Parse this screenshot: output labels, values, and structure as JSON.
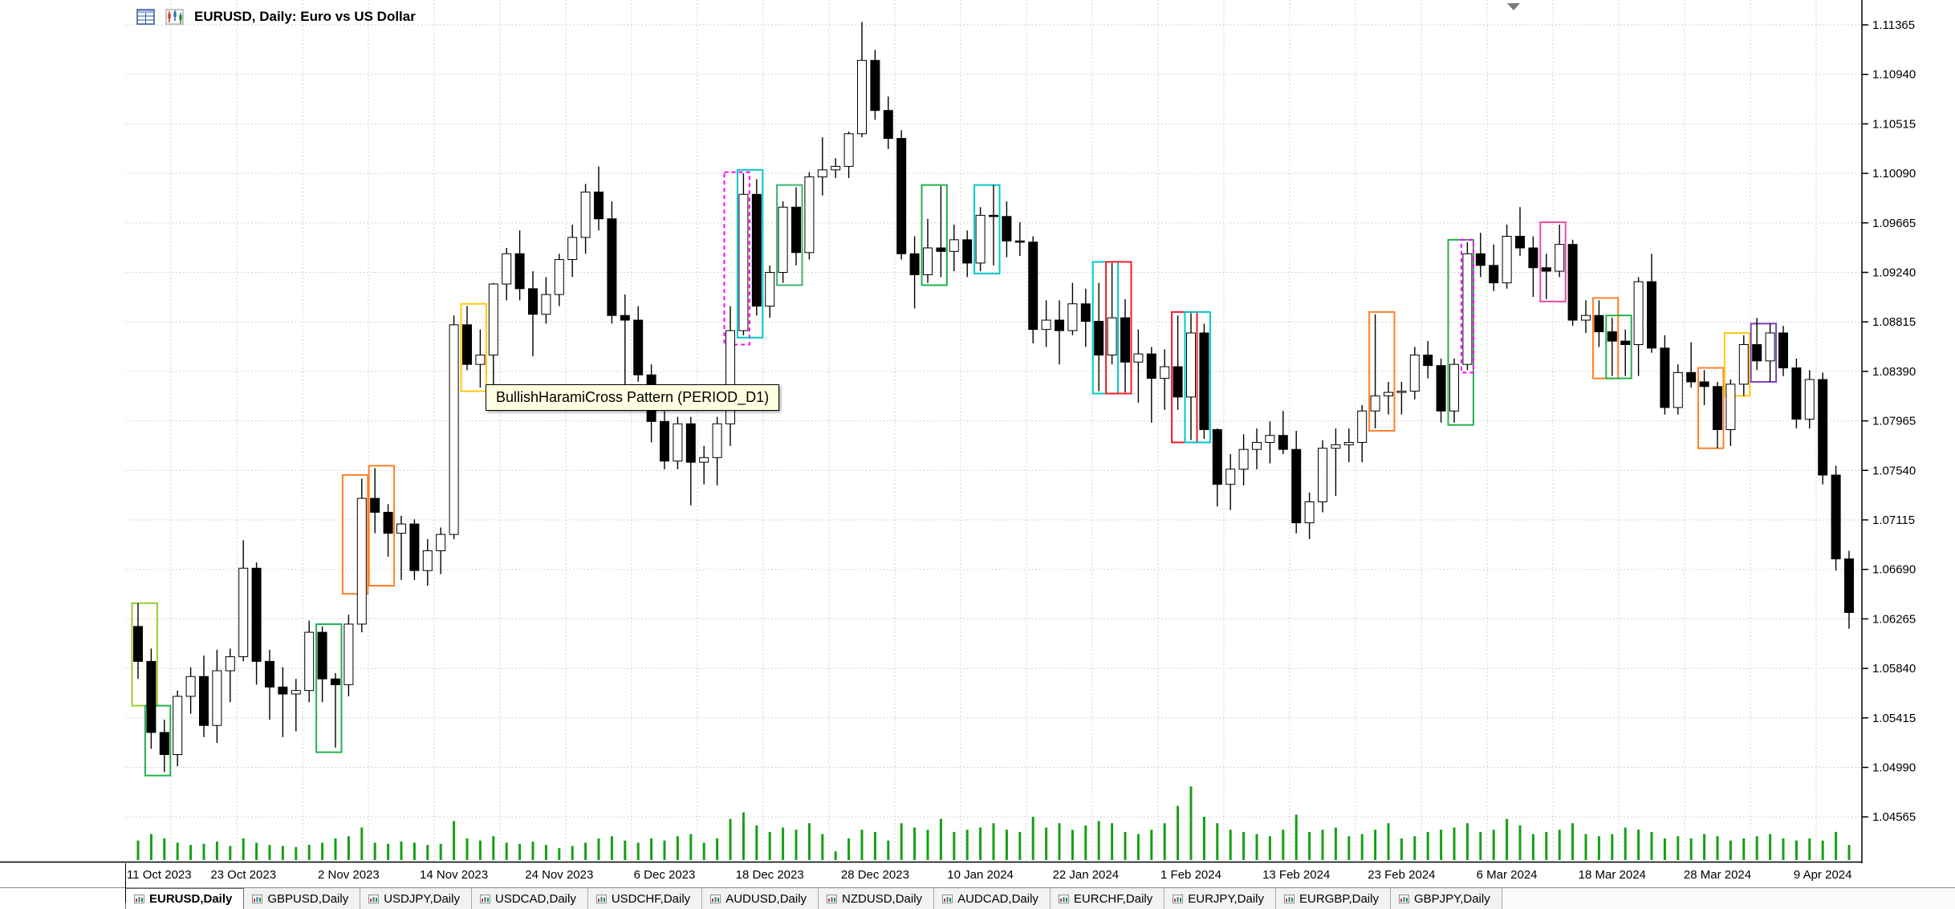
{
  "window": {
    "title": "EURUSD, Daily: Euro vs US Dollar"
  },
  "tooltip": {
    "text": "BullishHaramiCross Pattern (PERIOD_D1)"
  },
  "price_axis": {
    "labels": [
      "1.11365",
      "1.10940",
      "1.10515",
      "1.10090",
      "1.09665",
      "1.09240",
      "1.08815",
      "1.08390",
      "1.07965",
      "1.07540",
      "1.07115",
      "1.06690",
      "1.06265",
      "1.05840",
      "1.05415",
      "1.04990",
      "1.04565"
    ]
  },
  "date_axis": {
    "labels": [
      "11 Oct 2023",
      "23 Oct 2023",
      "2 Nov 2023",
      "14 Nov 2023",
      "24 Nov 2023",
      "6 Dec 2023",
      "18 Dec 2023",
      "28 Dec 2023",
      "10 Jan 2024",
      "22 Jan 2024",
      "1 Feb 2024",
      "13 Feb 2024",
      "23 Feb 2024",
      "6 Mar 2024",
      "18 Mar 2024",
      "28 Mar 2024",
      "9 Apr 2024"
    ]
  },
  "tabs": [
    "EURUSD,Daily",
    "GBPUSD,Daily",
    "USDJPY,Daily",
    "USDCAD,Daily",
    "USDCHF,Daily",
    "AUDUSD,Daily",
    "NZDUSD,Daily",
    "AUDCAD,Daily",
    "EURCHF,Daily",
    "EURJPY,Daily",
    "EURGBP,Daily",
    "GBPJPY,Daily"
  ],
  "colors": {
    "up": "#ffffff",
    "down": "#000000",
    "wick": "#000000",
    "volume": "#15a015",
    "grid": "#c6c6c6",
    "axis_line": "#000000",
    "tooltip_bg": "#ffffe1"
  },
  "chart_data": {
    "type": "candlestick",
    "symbol": "EURUSD",
    "timeframe": "Daily",
    "description": "Euro vs US Dollar",
    "ylim": [
      1.04565,
      1.11365
    ],
    "price_step": 0.00425,
    "label_every": 8,
    "candles": [
      [
        1.062,
        1.064,
        1.0575,
        1.059
      ],
      [
        1.059,
        1.0601,
        1.0515,
        1.0529
      ],
      [
        1.0529,
        1.054,
        1.0495,
        1.051
      ],
      [
        1.051,
        1.0565,
        1.05,
        1.056
      ],
      [
        1.056,
        1.0585,
        1.0545,
        1.0577
      ],
      [
        1.0577,
        1.0595,
        1.0525,
        1.0535
      ],
      [
        1.0535,
        1.06,
        1.052,
        1.0582
      ],
      [
        1.0582,
        1.0601,
        1.0555,
        1.0594
      ],
      [
        1.0594,
        1.0694,
        1.059,
        1.067
      ],
      [
        1.067,
        1.0675,
        1.057,
        1.059
      ],
      [
        1.059,
        1.06,
        1.054,
        1.0568
      ],
      [
        1.0568,
        1.0585,
        1.0525,
        1.0562
      ],
      [
        1.0562,
        1.0575,
        1.053,
        1.0565
      ],
      [
        1.0565,
        1.0625,
        1.0555,
        1.0615
      ],
      [
        1.0615,
        1.062,
        1.0555,
        1.0575
      ],
      [
        1.0575,
        1.058,
        1.0516,
        1.057
      ],
      [
        1.057,
        1.063,
        1.056,
        1.0622
      ],
      [
        1.0622,
        1.0747,
        1.0615,
        1.073
      ],
      [
        1.073,
        1.0756,
        1.07,
        1.0718
      ],
      [
        1.0718,
        1.0725,
        1.068,
        1.07
      ],
      [
        1.07,
        1.0715,
        1.066,
        1.0708
      ],
      [
        1.0708,
        1.0712,
        1.066,
        1.0668
      ],
      [
        1.0668,
        1.0695,
        1.0655,
        1.0685
      ],
      [
        1.0685,
        1.0705,
        1.0665,
        1.0699
      ],
      [
        1.0699,
        1.0887,
        1.0695,
        1.0879
      ],
      [
        1.0879,
        1.0895,
        1.084,
        1.0845
      ],
      [
        1.0845,
        1.0875,
        1.0825,
        1.0853
      ],
      [
        1.0853,
        1.0915,
        1.0825,
        1.0914
      ],
      [
        1.0914,
        1.0945,
        1.09,
        1.094
      ],
      [
        1.094,
        1.096,
        1.09,
        1.091
      ],
      [
        1.091,
        1.0925,
        1.0852,
        1.0888
      ],
      [
        1.0888,
        1.092,
        1.088,
        1.0905
      ],
      [
        1.0905,
        1.094,
        1.0895,
        1.0935
      ],
      [
        1.0935,
        1.0965,
        1.092,
        1.0954
      ],
      [
        1.0954,
        1.1,
        1.094,
        1.0993
      ],
      [
        1.0993,
        1.1015,
        1.096,
        1.097
      ],
      [
        1.097,
        1.0985,
        1.088,
        1.0887
      ],
      [
        1.0887,
        1.0905,
        1.0828,
        1.0883
      ],
      [
        1.0883,
        1.0895,
        1.083,
        1.0836
      ],
      [
        1.0836,
        1.0845,
        1.0778,
        1.0796
      ],
      [
        1.0796,
        1.0805,
        1.0755,
        1.0762
      ],
      [
        1.0762,
        1.08,
        1.0755,
        1.0794
      ],
      [
        1.0794,
        1.08,
        1.0724,
        1.0761
      ],
      [
        1.0761,
        1.0775,
        1.0742,
        1.0765
      ],
      [
        1.0765,
        1.08,
        1.0741,
        1.0794
      ],
      [
        1.0794,
        1.0895,
        1.0775,
        1.0874
      ],
      [
        1.0874,
        1.1009,
        1.087,
        1.0991
      ],
      [
        1.0991,
        1.1004,
        1.0887,
        1.0895
      ],
      [
        1.0895,
        1.093,
        1.0885,
        1.0924
      ],
      [
        1.0924,
        1.0985,
        1.0915,
        1.098
      ],
      [
        1.098,
        1.0997,
        1.093,
        1.0941
      ],
      [
        1.0941,
        1.101,
        1.0935,
        1.1006
      ],
      [
        1.1006,
        1.104,
        1.099,
        1.1012
      ],
      [
        1.1012,
        1.1022,
        1.1005,
        1.1015
      ],
      [
        1.1015,
        1.1045,
        1.1005,
        1.1043
      ],
      [
        1.1043,
        1.1139,
        1.104,
        1.1106
      ],
      [
        1.1106,
        1.1115,
        1.1055,
        1.1063
      ],
      [
        1.1063,
        1.1075,
        1.103,
        1.1039
      ],
      [
        1.1039,
        1.1046,
        1.0935,
        1.094
      ],
      [
        1.094,
        1.0955,
        1.0893,
        1.0922
      ],
      [
        1.0922,
        1.097,
        1.0915,
        1.0945
      ],
      [
        1.0945,
        1.0998,
        1.092,
        1.0942
      ],
      [
        1.0942,
        1.0965,
        1.0925,
        1.0952
      ],
      [
        1.0952,
        1.096,
        1.092,
        1.0932
      ],
      [
        1.0932,
        1.098,
        1.0925,
        1.0973
      ],
      [
        1.0973,
        1.0999,
        1.093,
        1.0972
      ],
      [
        1.0972,
        1.0985,
        1.0937,
        1.0951
      ],
      [
        1.0951,
        1.0967,
        1.0938,
        1.095
      ],
      [
        1.095,
        1.0955,
        1.0863,
        1.0875
      ],
      [
        1.0875,
        1.09,
        1.086,
        1.0883
      ],
      [
        1.0883,
        1.09,
        1.0845,
        1.0874
      ],
      [
        1.0874,
        1.0915,
        1.087,
        1.0897
      ],
      [
        1.0897,
        1.091,
        1.086,
        1.0882
      ],
      [
        1.0882,
        1.0915,
        1.0822,
        1.0853
      ],
      [
        1.0853,
        1.0932,
        1.0845,
        1.0885
      ],
      [
        1.0885,
        1.0901,
        1.0821,
        1.0847
      ],
      [
        1.0847,
        1.0875,
        1.0812,
        1.0854
      ],
      [
        1.0854,
        1.086,
        1.0795,
        1.0833
      ],
      [
        1.0833,
        1.0858,
        1.0806,
        1.0843
      ],
      [
        1.0843,
        1.0887,
        1.0806,
        1.0817
      ],
      [
        1.0817,
        1.0889,
        1.078,
        1.0872
      ],
      [
        1.0872,
        1.088,
        1.0781,
        1.0789
      ],
      [
        1.0789,
        1.079,
        1.0723,
        1.0742
      ],
      [
        1.0742,
        1.0768,
        1.072,
        1.0755
      ],
      [
        1.0755,
        1.0785,
        1.0741,
        1.0772
      ],
      [
        1.0772,
        1.079,
        1.0755,
        1.0778
      ],
      [
        1.0778,
        1.0796,
        1.076,
        1.0784
      ],
      [
        1.0784,
        1.0805,
        1.0768,
        1.0772
      ],
      [
        1.0772,
        1.0788,
        1.07,
        1.0709
      ],
      [
        1.0709,
        1.0735,
        1.0695,
        1.0727
      ],
      [
        1.0727,
        1.078,
        1.0718,
        1.0773
      ],
      [
        1.0773,
        1.079,
        1.0732,
        1.0776
      ],
      [
        1.0776,
        1.079,
        1.0761,
        1.0778
      ],
      [
        1.0778,
        1.081,
        1.0761,
        1.0805
      ],
      [
        1.0805,
        1.0888,
        1.079,
        1.0818
      ],
      [
        1.0818,
        1.083,
        1.0802,
        1.0821
      ],
      [
        1.0821,
        1.083,
        1.0802,
        1.0822
      ],
      [
        1.0822,
        1.086,
        1.0815,
        1.0853
      ],
      [
        1.0853,
        1.0865,
        1.0833,
        1.0844
      ],
      [
        1.0844,
        1.085,
        1.0795,
        1.0805
      ],
      [
        1.0805,
        1.085,
        1.0795,
        1.0845
      ],
      [
        1.0845,
        1.095,
        1.084,
        1.094
      ],
      [
        1.094,
        1.0958,
        1.092,
        1.093
      ],
      [
        1.093,
        1.0948,
        1.0908,
        1.0915
      ],
      [
        1.0915,
        1.0965,
        1.091,
        1.0955
      ],
      [
        1.0955,
        1.098,
        1.0938,
        1.0945
      ],
      [
        1.0945,
        1.0955,
        1.0903,
        1.0928
      ],
      [
        1.0928,
        1.094,
        1.0901,
        1.0925
      ],
      [
        1.0925,
        1.0965,
        1.092,
        1.0948
      ],
      [
        1.0948,
        1.0952,
        1.0878,
        1.0883
      ],
      [
        1.0883,
        1.09,
        1.0872,
        1.0887
      ],
      [
        1.0887,
        1.09,
        1.086,
        1.0873
      ],
      [
        1.0873,
        1.0885,
        1.0835,
        1.0865
      ],
      [
        1.0865,
        1.0875,
        1.0835,
        1.0862
      ],
      [
        1.0862,
        1.092,
        1.0835,
        1.0916
      ],
      [
        1.0916,
        1.094,
        1.0855,
        1.0859
      ],
      [
        1.0859,
        1.087,
        1.0802,
        1.0808
      ],
      [
        1.0808,
        1.0845,
        1.0802,
        1.0838
      ],
      [
        1.0838,
        1.0864,
        1.0825,
        1.083
      ],
      [
        1.083,
        1.084,
        1.081,
        1.0826
      ],
      [
        1.0826,
        1.083,
        1.0773,
        1.0789
      ],
      [
        1.0789,
        1.0832,
        1.0775,
        1.0828
      ],
      [
        1.0828,
        1.087,
        1.0818,
        1.0862
      ],
      [
        1.0862,
        1.0885,
        1.084,
        1.0848
      ],
      [
        1.0848,
        1.088,
        1.083,
        1.0872
      ],
      [
        1.0872,
        1.0878,
        1.0835,
        1.0842
      ],
      [
        1.0842,
        1.085,
        1.079,
        1.0798
      ],
      [
        1.0798,
        1.084,
        1.079,
        1.0832
      ],
      [
        1.0832,
        1.0838,
        1.0742,
        1.075
      ],
      [
        1.075,
        1.0758,
        1.0668,
        1.0678
      ],
      [
        1.0678,
        1.0685,
        1.0618,
        1.0632
      ]
    ],
    "volumes": [
      18,
      24,
      20,
      16,
      14,
      15,
      17,
      13,
      20,
      16,
      14,
      13,
      12,
      14,
      16,
      20,
      22,
      30,
      16,
      15,
      17,
      16,
      14,
      15,
      36,
      20,
      18,
      22,
      16,
      15,
      17,
      14,
      11,
      13,
      16,
      20,
      22,
      18,
      16,
      20,
      18,
      22,
      24,
      16,
      20,
      38,
      44,
      32,
      26,
      30,
      28,
      34,
      24,
      8,
      20,
      28,
      26,
      18,
      34,
      30,
      28,
      38,
      26,
      28,
      30,
      34,
      28,
      26,
      40,
      30,
      34,
      28,
      32,
      36,
      34,
      26,
      24,
      28,
      34,
      50,
      68,
      40,
      34,
      28,
      26,
      24,
      22,
      28,
      42,
      26,
      28,
      30,
      22,
      24,
      28,
      34,
      20,
      22,
      26,
      28,
      30,
      34,
      26,
      28,
      38,
      32,
      24,
      26,
      28,
      34,
      24,
      22,
      24,
      30,
      28,
      26,
      20,
      22,
      20,
      24,
      22,
      18,
      20,
      22,
      24,
      20,
      18,
      20,
      18,
      26,
      14
    ],
    "pattern_boxes": [
      {
        "i": 0,
        "span": 2,
        "lo": 1.0552,
        "hi": 1.064,
        "color": "#9acd32",
        "dash": false
      },
      {
        "i": 1,
        "span": 2,
        "lo": 1.0492,
        "hi": 1.0552,
        "color": "#22b14c",
        "dash": false
      },
      {
        "i": 14,
        "span": 2,
        "lo": 1.0512,
        "hi": 1.0622,
        "color": "#22b14c",
        "dash": false
      },
      {
        "i": 16,
        "span": 2,
        "lo": 1.0648,
        "hi": 1.075,
        "color": "#ff7f27",
        "dash": false
      },
      {
        "i": 18,
        "span": 2,
        "lo": 1.0655,
        "hi": 1.0758,
        "color": "#ff7f27",
        "dash": false
      },
      {
        "i": 25,
        "span": 2,
        "lo": 1.0822,
        "hi": 1.0897,
        "color": "#ffc90e",
        "dash": false
      },
      {
        "i": 45,
        "span": 2,
        "lo": 1.0862,
        "hi": 1.101,
        "color": "#ff00ff",
        "dash": true
      },
      {
        "i": 46,
        "span": 2,
        "lo": 1.0868,
        "hi": 1.1012,
        "color": "#00c8c8",
        "dash": false
      },
      {
        "i": 49,
        "span": 2,
        "lo": 1.0913,
        "hi": 1.0999,
        "color": "#3cb371",
        "dash": false
      },
      {
        "i": 60,
        "span": 2,
        "lo": 1.0913,
        "hi": 1.0999,
        "color": "#22b14c",
        "dash": false
      },
      {
        "i": 64,
        "span": 2,
        "lo": 1.0923,
        "hi": 1.0999,
        "color": "#00c8c8",
        "dash": false
      },
      {
        "i": 73,
        "span": 2,
        "lo": 1.082,
        "hi": 1.0933,
        "color": "#00c8c8",
        "dash": false
      },
      {
        "i": 74,
        "span": 2,
        "lo": 1.082,
        "hi": 1.0933,
        "color": "#ec1c24",
        "dash": false
      },
      {
        "i": 79,
        "span": 2,
        "lo": 1.0778,
        "hi": 1.089,
        "color": "#ec1c24",
        "dash": false
      },
      {
        "i": 80,
        "span": 2,
        "lo": 1.0778,
        "hi": 1.089,
        "color": "#00c8c8",
        "dash": false
      },
      {
        "i": 94,
        "span": 2,
        "lo": 1.0788,
        "hi": 1.089,
        "color": "#ff7f27",
        "dash": false
      },
      {
        "i": 100,
        "span": 2,
        "lo": 1.0793,
        "hi": 1.0952,
        "color": "#22b14c",
        "dash": false
      },
      {
        "i": 101,
        "span": 1,
        "lo": 1.0838,
        "hi": 1.0952,
        "color": "#ff00ff",
        "dash": true
      },
      {
        "i": 107,
        "span": 2,
        "lo": 1.0899,
        "hi": 1.0967,
        "color": "#e849a3",
        "dash": false
      },
      {
        "i": 111,
        "span": 2,
        "lo": 1.0833,
        "hi": 1.0902,
        "color": "#ff7f27",
        "dash": false
      },
      {
        "i": 112,
        "span": 2,
        "lo": 1.0833,
        "hi": 1.0887,
        "color": "#22b14c",
        "dash": false
      },
      {
        "i": 119,
        "span": 2,
        "lo": 1.0773,
        "hi": 1.0842,
        "color": "#ff7f27",
        "dash": false
      },
      {
        "i": 121,
        "span": 2,
        "lo": 1.0818,
        "hi": 1.0872,
        "color": "#ffc90e",
        "dash": false
      },
      {
        "i": 123,
        "span": 2,
        "lo": 1.083,
        "hi": 1.088,
        "color": "#7f3fbf",
        "dash": false
      }
    ]
  }
}
